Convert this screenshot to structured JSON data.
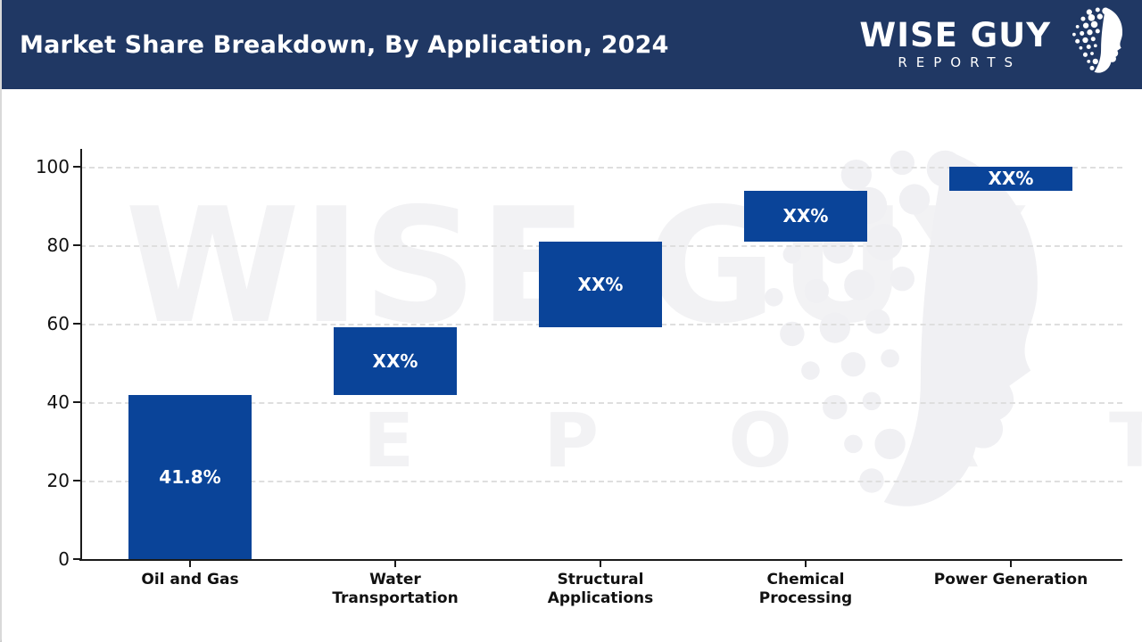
{
  "header": {
    "title": "Market Share Breakdown, By Application, 2024",
    "bg_color": "#203864",
    "logo": {
      "line1": "WISE GUY",
      "line2": "REPORTS"
    }
  },
  "watermark": {
    "line1": "WISE GUY",
    "line2": "R E P O R T S"
  },
  "chart_data": {
    "type": "bar",
    "subtype": "waterfall",
    "title": "Market Share Breakdown, By Application, 2024",
    "categories": [
      "Oil and Gas",
      "Water Transportation",
      "Structural Applications",
      "Chemical Processing",
      "Power Generation"
    ],
    "categories_display": [
      [
        "Oil and Gas"
      ],
      [
        "Water",
        "Transportation"
      ],
      [
        "Structural",
        "Applications"
      ],
      [
        "Chemical",
        "Processing"
      ],
      [
        "Power Generation"
      ]
    ],
    "values": [
      41.8,
      17.3,
      21.8,
      13.0,
      6.1
    ],
    "cumulative": [
      41.8,
      59.1,
      80.9,
      93.9,
      100.0
    ],
    "bar_labels": [
      "41.8%",
      "XX%",
      "XX%",
      "XX%",
      "XX%"
    ],
    "bar_color": "#0a4499",
    "bar_label_color": "#ffffff",
    "xlabel": "",
    "ylabel": "",
    "ylim": [
      0,
      100
    ],
    "yticks": [
      0,
      20,
      40,
      60,
      80,
      100
    ],
    "grid": "horizontal dashed",
    "legend": "none"
  }
}
